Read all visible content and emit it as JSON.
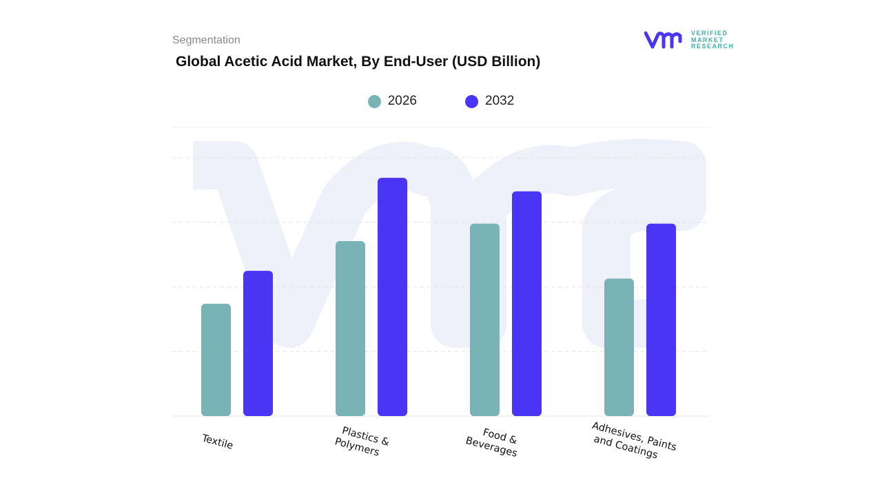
{
  "header": {
    "segment_label": "Segmentation",
    "brand_lines": [
      "VERIFIED",
      "MARKET",
      "RESEARCH"
    ]
  },
  "chart_data": {
    "type": "bar",
    "title": "Global Acetic Acid Market, By End-User (USD Billion)",
    "categories": [
      [
        "Textile"
      ],
      [
        "Plastics &",
        "Polymers"
      ],
      [
        "Food &",
        "Beverages"
      ],
      [
        "Adhesives, Paints",
        "and Coatings"
      ]
    ],
    "series": [
      {
        "name": "2026",
        "color": "#7ab3b5",
        "values": [
          1.74,
          2.71,
          2.98,
          2.13
        ]
      },
      {
        "name": "2032",
        "color": "#4b35f5",
        "values": [
          2.25,
          3.69,
          3.48,
          2.98
        ]
      }
    ],
    "ylim": [
      0,
      4.47
    ],
    "y_unit_note": "relative (no y-axis ticks shown)",
    "grid": true,
    "legend_position": "top"
  }
}
